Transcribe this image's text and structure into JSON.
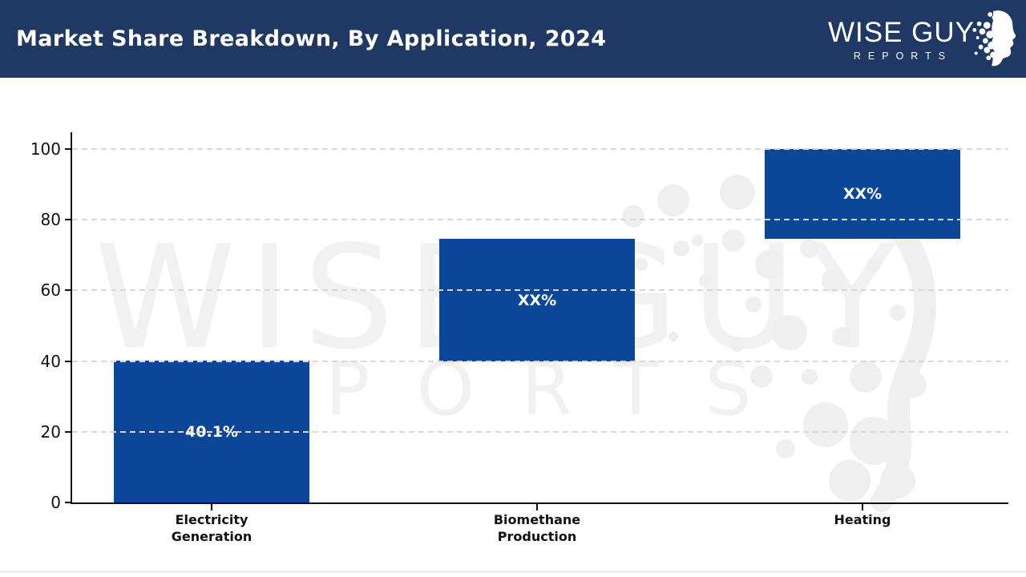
{
  "header": {
    "title": "Market Share Breakdown, By Application, 2024",
    "logo": {
      "line1": "WISE GUY",
      "line2": "REPORTS"
    }
  },
  "watermark": {
    "line1": "WISE GUY",
    "line2": "REPORTS"
  },
  "colors": {
    "header_bg": "#1f3864",
    "bar": "#0b4699",
    "grid": "#d8d8d8",
    "axis": "#111111",
    "bar_label": "#ffffff",
    "watermark": "#f1f1f2",
    "background": "#ffffff"
  },
  "chart_data": {
    "type": "bar",
    "subtype": "stacked-breakdown-waterfall",
    "title": "Market Share Breakdown, By Application, 2024",
    "categories": [
      "Electricity\nGeneration",
      "Biomethane\nProduction",
      "Heating"
    ],
    "segments": [
      {
        "category": "Electricity Generation",
        "start": 0,
        "end": 40.1,
        "label": "40.1%"
      },
      {
        "category": "Biomethane Production",
        "start": 40.1,
        "end": 74.7,
        "label": "XX%"
      },
      {
        "category": "Heating",
        "start": 74.7,
        "end": 100,
        "label": "XX%"
      }
    ],
    "yticks": [
      0,
      20,
      40,
      60,
      80,
      100
    ],
    "ylim": [
      0,
      104.8
    ],
    "xlabel": "",
    "ylabel": "",
    "grid": "dashed-horizontal",
    "legend": "none"
  }
}
